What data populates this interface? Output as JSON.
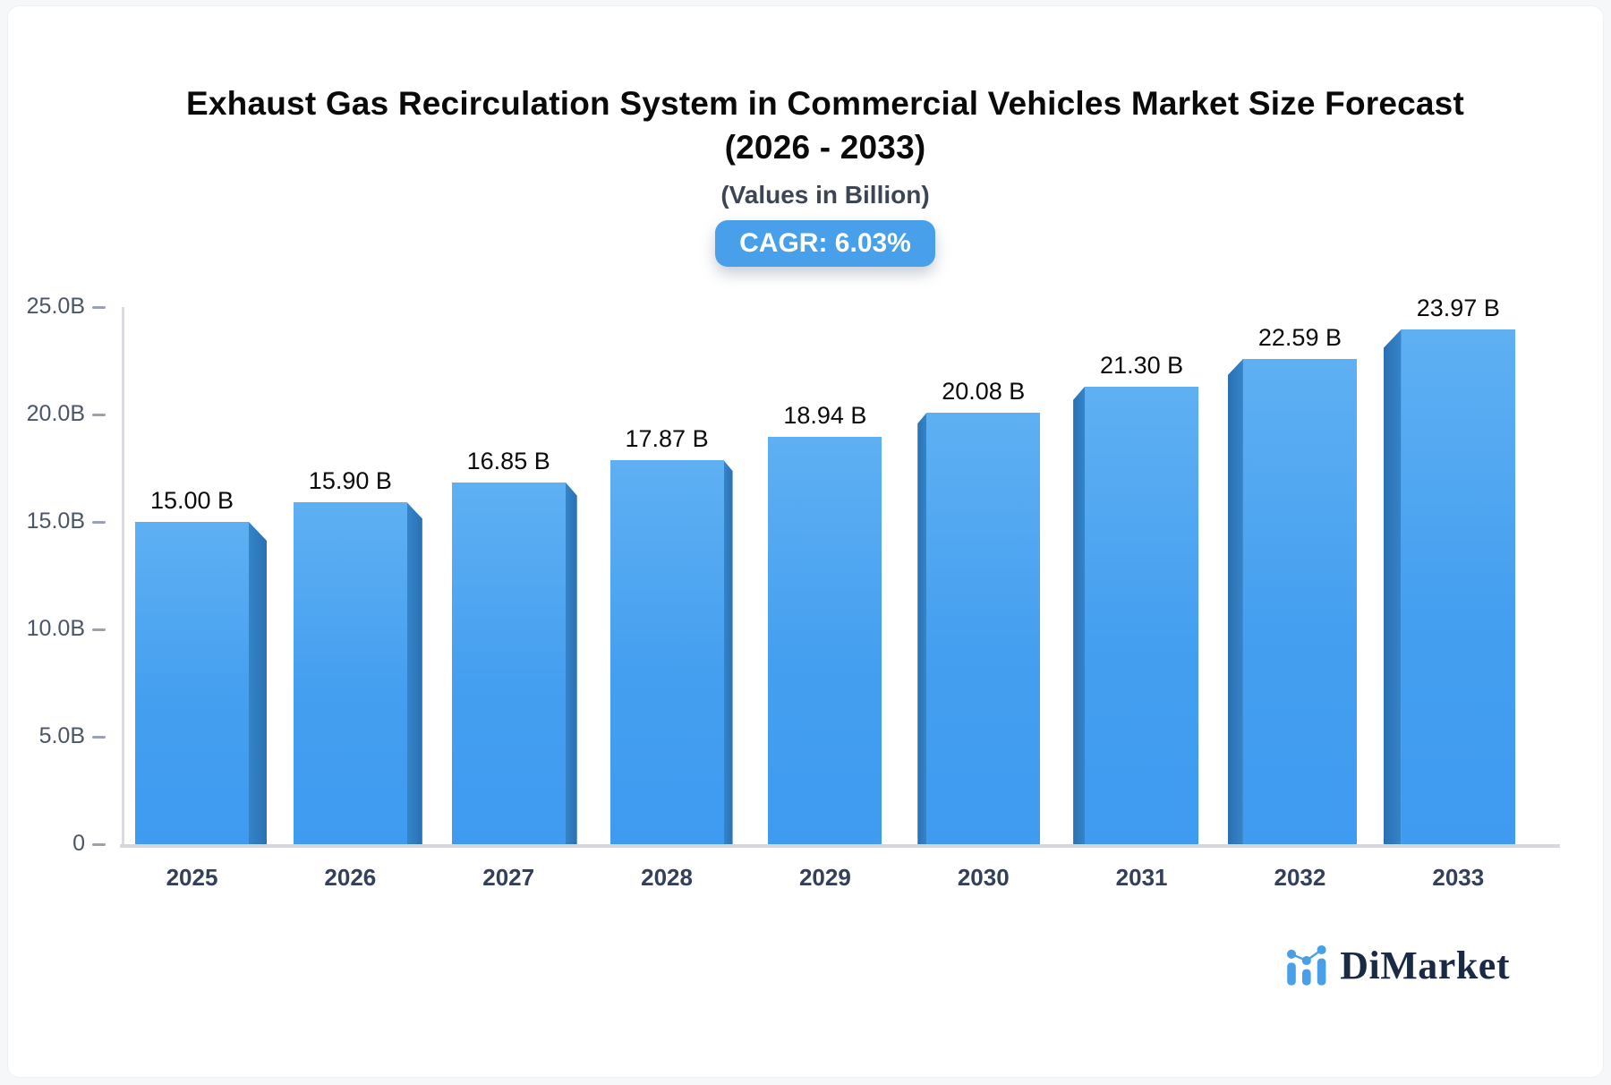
{
  "header": {
    "title_line1": "Exhaust Gas Recirculation System in Commercial Vehicles Market Size Forecast",
    "title_line2": "(2026 - 2033)",
    "subtitle": "(Values in Billion)",
    "cagr_badge": "CAGR: 6.03%"
  },
  "chart_data": {
    "type": "bar",
    "title": "Exhaust Gas Recirculation System in Commercial Vehicles Market Size Forecast (2026 - 2033)",
    "subtitle": "(Values in Billion)",
    "cagr_percent": 6.03,
    "categories": [
      "2025",
      "2026",
      "2027",
      "2028",
      "2029",
      "2030",
      "2031",
      "2032",
      "2033"
    ],
    "values": [
      15.0,
      15.9,
      16.85,
      17.87,
      18.94,
      20.08,
      21.3,
      22.59,
      23.97
    ],
    "value_labels": [
      "15.00 B",
      "15.90 B",
      "16.85 B",
      "17.87 B",
      "18.94 B",
      "20.08 B",
      "21.30 B",
      "22.59 B",
      "23.97 B"
    ],
    "xlabel": "",
    "ylabel": "",
    "ylim": [
      0,
      25
    ],
    "yticks": [
      {
        "label": "0",
        "value": 0
      },
      {
        "label": "5.0B",
        "value": 5
      },
      {
        "label": "10.0B",
        "value": 10
      },
      {
        "label": "15.0B",
        "value": 15
      },
      {
        "label": "20.0B",
        "value": 20
      },
      {
        "label": "25.0B",
        "value": 25
      }
    ],
    "grid": false,
    "legend": false,
    "bar_style": "3d-perspective"
  },
  "footer": {
    "brand": "DiMarket",
    "logo_icon": "bar-line-chart-icon"
  },
  "colors": {
    "bar_face_top": "#5eb0f2",
    "bar_face_bottom": "#3e9bf0",
    "bar_side": "#2b74b9",
    "badge_bg": "#48a0ea",
    "badge_text": "#ffffff",
    "axis_line": "#d6d8dc",
    "tick_label": "#4a5568",
    "category_label": "#32405a",
    "title_text": "#0a0a0a",
    "brand_text": "#1b2a44",
    "brand_icon": "#4aa0e8"
  }
}
